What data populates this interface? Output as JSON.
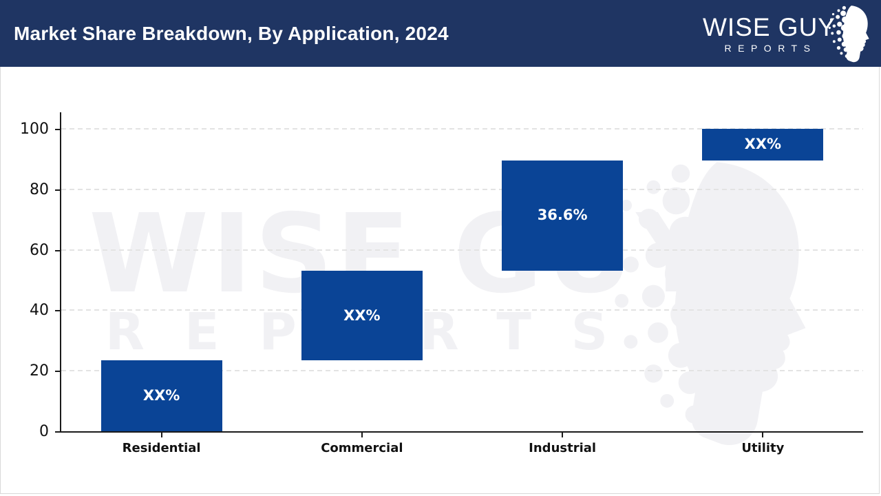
{
  "header": {
    "title": "Market Share Breakdown, By Application, 2024",
    "bg_color": "#1f3563",
    "logo": {
      "line1": "WISE GUY",
      "line2": "REPORTS"
    }
  },
  "watermark": {
    "line1": "WISE GUY",
    "line2": "REPORTS"
  },
  "chart_data": {
    "type": "bar",
    "subtype": "waterfall",
    "title": "Market Share Breakdown, By Application, 2024",
    "categories": [
      "Residential",
      "Commercial",
      "Industrial",
      "Utility"
    ],
    "segments": [
      {
        "category": "Residential",
        "start": 0,
        "end": 23.5,
        "label": "XX%"
      },
      {
        "category": "Commercial",
        "start": 23.5,
        "end": 53.0,
        "label": "XX%"
      },
      {
        "category": "Industrial",
        "start": 53.0,
        "end": 89.6,
        "label": "36.6%"
      },
      {
        "category": "Utility",
        "start": 89.6,
        "end": 100,
        "label": "XX%"
      }
    ],
    "xlabel": "",
    "ylabel": "",
    "ylim": [
      0,
      100
    ],
    "yticks": [
      0,
      20,
      40,
      60,
      80,
      100
    ],
    "grid": "horizontal-dashed",
    "legend": "none",
    "bar_color": "#0a4496",
    "bar_label_color": "#ffffff",
    "axis_color": "#1a1a1a",
    "gridline_color": "#e3e3e3"
  }
}
